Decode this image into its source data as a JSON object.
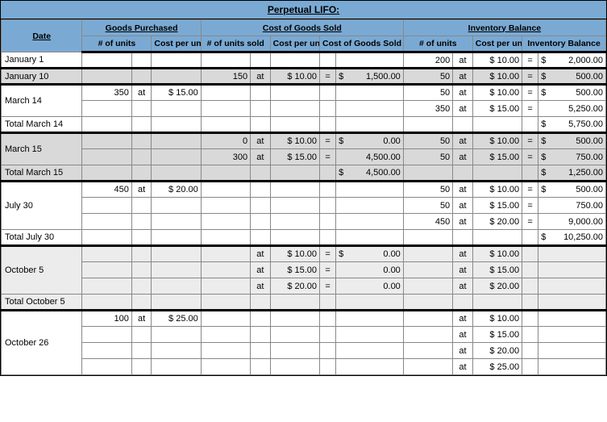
{
  "title": "Perpetual LIFO:",
  "headers": {
    "date": "Date",
    "gp": "Goods Purchased",
    "cogs": "Cost of Goods Sold",
    "ib": "Inventory Balance",
    "units": "# of units",
    "cpu": "Cost per unit",
    "us": "# of units sold",
    "cogs_amt": "Cost of Goods Sold",
    "ibal": "Inventory Balance"
  },
  "tok": {
    "at": "at",
    "eq": "=",
    "cur": "$"
  },
  "rows": {
    "jan1": {
      "date": "January 1",
      "ib_u": "200",
      "ib_c": "$ 10.00",
      "ib_b": "2,000.00"
    },
    "jan10": {
      "date": "January 10",
      "cs_u": "150",
      "cs_c": "$ 10.00",
      "cs_a": "1,500.00",
      "ib_u": "50",
      "ib_c": "$ 10.00",
      "ib_b": "500.00"
    },
    "mar14": {
      "date": "March 14",
      "gp_u": "350",
      "gp_c": "$ 15.00",
      "l1": {
        "ib_u": "50",
        "ib_c": "$ 10.00",
        "ib_b": "500.00"
      },
      "l2": {
        "ib_u": "350",
        "ib_c": "$ 15.00",
        "ib_b": "5,250.00"
      }
    },
    "tmar14": {
      "date": "Total March 14",
      "ib_b": "5,750.00"
    },
    "mar15": {
      "date": "March 15",
      "l1": {
        "cs_u": "0",
        "cs_c": "$ 10.00",
        "cs_a": "0.00",
        "ib_u": "50",
        "ib_c": "$ 10.00",
        "ib_b": "500.00"
      },
      "l2": {
        "cs_u": "300",
        "cs_c": "$ 15.00",
        "cs_a": "4,500.00",
        "ib_u": "50",
        "ib_c": "$ 15.00",
        "ib_b": "750.00"
      }
    },
    "tmar15": {
      "date": "Total March 15",
      "cs_a": "4,500.00",
      "ib_b": "1,250.00"
    },
    "jul30": {
      "date": "July 30",
      "gp_u": "450",
      "gp_c": "$ 20.00",
      "l1": {
        "ib_u": "50",
        "ib_c": "$ 10.00",
        "ib_b": "500.00"
      },
      "l2": {
        "ib_u": "50",
        "ib_c": "$ 15.00",
        "ib_b": "750.00"
      },
      "l3": {
        "ib_u": "450",
        "ib_c": "$ 20.00",
        "ib_b": "9,000.00"
      }
    },
    "tjul30": {
      "date": "Total July 30",
      "ib_b": "10,250.00"
    },
    "oct5": {
      "date": "October 5",
      "l1": {
        "cs_c": "$ 10.00",
        "cs_a": "0.00",
        "ib_c": "$ 10.00"
      },
      "l2": {
        "cs_c": "$ 15.00",
        "cs_a": "0.00",
        "ib_c": "$ 15.00"
      },
      "l3": {
        "cs_c": "$ 20.00",
        "cs_a": "0.00",
        "ib_c": "$ 20.00"
      }
    },
    "toct5": {
      "date": "Total October 5"
    },
    "oct26": {
      "date": "October 26",
      "gp_u": "100",
      "gp_c": "$ 25.00",
      "l1": {
        "ib_c": "$ 10.00"
      },
      "l2": {
        "ib_c": "$ 15.00"
      },
      "l3": {
        "ib_c": "$ 20.00"
      },
      "l4": {
        "ib_c": "$ 25.00"
      }
    }
  },
  "colors": {
    "header_bg": "#7aaad4",
    "shade": "#d9d9d9",
    "shade_lt": "#ececec",
    "grid": "#888888",
    "thick": "#000000"
  }
}
